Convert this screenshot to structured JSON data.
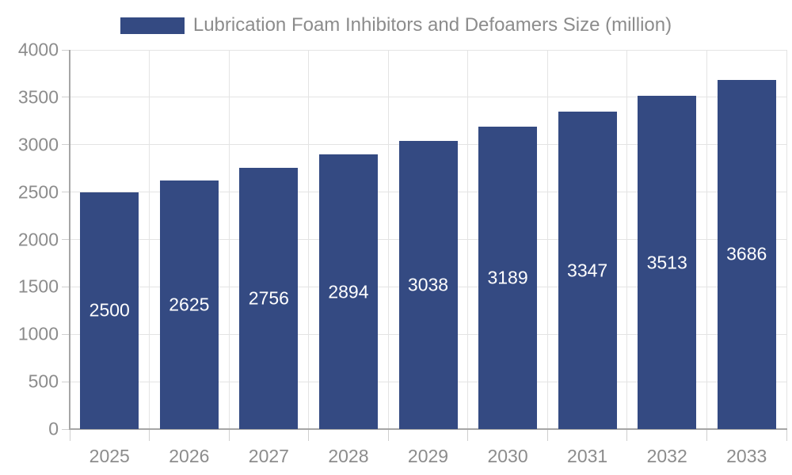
{
  "legend": {
    "label": "Lubrication Foam Inhibitors and Defoamers Size (million)"
  },
  "colors": {
    "bar": "#344a82",
    "bar_label": "#ffffff",
    "axis_line": "#a6a6a6",
    "tick": "#cfcfcf",
    "grid": "#e4e4e4",
    "axis_text": "#8c8c8c",
    "title_text": "#8c8c8c",
    "background": "#ffffff"
  },
  "chart_data": {
    "type": "bar",
    "title": "Lubrication Foam Inhibitors and Defoamers Size (million)",
    "series_name": "Lubrication Foam Inhibitors and Defoamers Size (million)",
    "categories": [
      "2025",
      "2026",
      "2027",
      "2028",
      "2029",
      "2030",
      "2031",
      "2032",
      "2033"
    ],
    "values": [
      2500,
      2625,
      2756,
      2894,
      3038,
      3189,
      3347,
      3513,
      3686
    ],
    "xlabel": "",
    "ylabel": "",
    "ylim": [
      0,
      4000
    ],
    "y_ticks": [
      0,
      500,
      1000,
      1500,
      2000,
      2500,
      3000,
      3500,
      4000
    ],
    "grid": true,
    "legend_position": "top",
    "value_label_position": "inside-middle"
  }
}
